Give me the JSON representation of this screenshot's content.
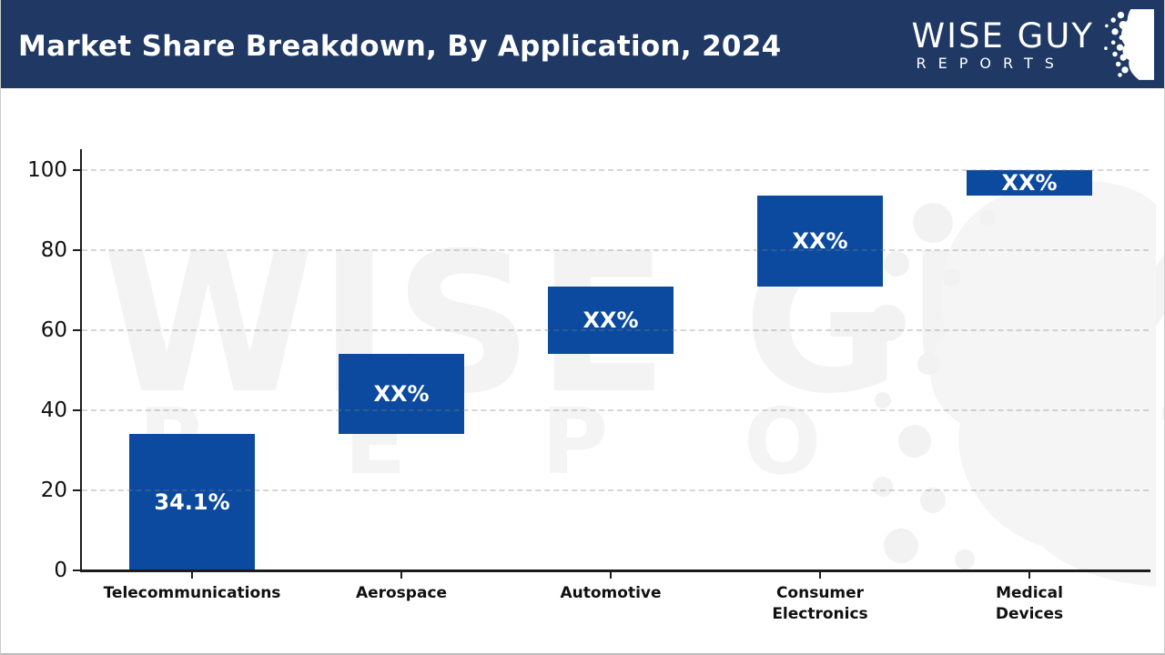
{
  "header": {
    "title": "Market Share Breakdown, By Application, 2024",
    "logo": {
      "line1": "WISE GUY",
      "line2": "REPORTS"
    }
  },
  "watermark": {
    "line1": "WISE GUY",
    "line2": "R E P O R T S"
  },
  "colors": {
    "header_bg": "#1f3864",
    "bar": "#0b4a9e",
    "bar_label": "#ffffff",
    "axis": "#1c1c1c",
    "grid_dash": "#d6d6d6",
    "watermark": "#f3f3f3"
  },
  "chart_data": {
    "type": "bar",
    "subtype": "waterfall",
    "title": "Market Share Breakdown, By Application, 2024",
    "categories": [
      "Telecommunications",
      "Aerospace",
      "Automotive",
      "Consumer\nElectronics",
      "Medical Devices"
    ],
    "segments": [
      {
        "category": "Telecommunications",
        "start": 0,
        "end": 34.1,
        "label": "34.1%"
      },
      {
        "category": "Aerospace",
        "start": 34.1,
        "end": 54.1,
        "label": "XX%"
      },
      {
        "category": "Automotive",
        "start": 54.1,
        "end": 70.9,
        "label": "XX%"
      },
      {
        "category": "Consumer Electronics",
        "start": 70.9,
        "end": 93.6,
        "label": "XX%"
      },
      {
        "category": "Medical Devices",
        "start": 93.6,
        "end": 100,
        "label": "XX%"
      }
    ],
    "xlabel": "",
    "ylabel": "",
    "ylim": [
      0,
      100
    ],
    "yticks": [
      0,
      20,
      40,
      60,
      80,
      100
    ],
    "grid": "horizontal-dashed",
    "legend": "none"
  }
}
